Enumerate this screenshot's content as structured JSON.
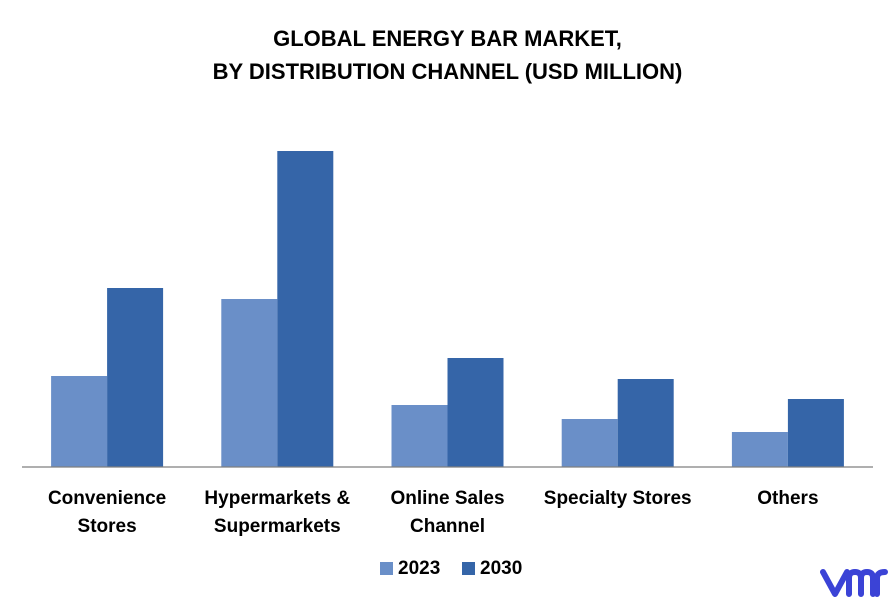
{
  "chart_data": {
    "type": "bar",
    "title_line1": "GLOBAL ENERGY BAR MARKET,",
    "title_line2": "BY DISTRIBUTION CHANNEL (USD MILLION)",
    "categories": [
      [
        "Convenience",
        "Stores"
      ],
      [
        "Hypermarkets &",
        "Supermarkets"
      ],
      [
        "Online Sales",
        "Channel"
      ],
      [
        "Specialty Stores"
      ],
      [
        "Others"
      ]
    ],
    "series": [
      {
        "name": "2023",
        "color": "#6a8fc8",
        "values": [
          91,
          168,
          62,
          48,
          35
        ]
      },
      {
        "name": "2030",
        "color": "#3565a8",
        "values": [
          179,
          316,
          109,
          88,
          68
        ]
      }
    ],
    "ylim": [
      0,
      340
    ],
    "grid": false,
    "legend": "bottom"
  }
}
